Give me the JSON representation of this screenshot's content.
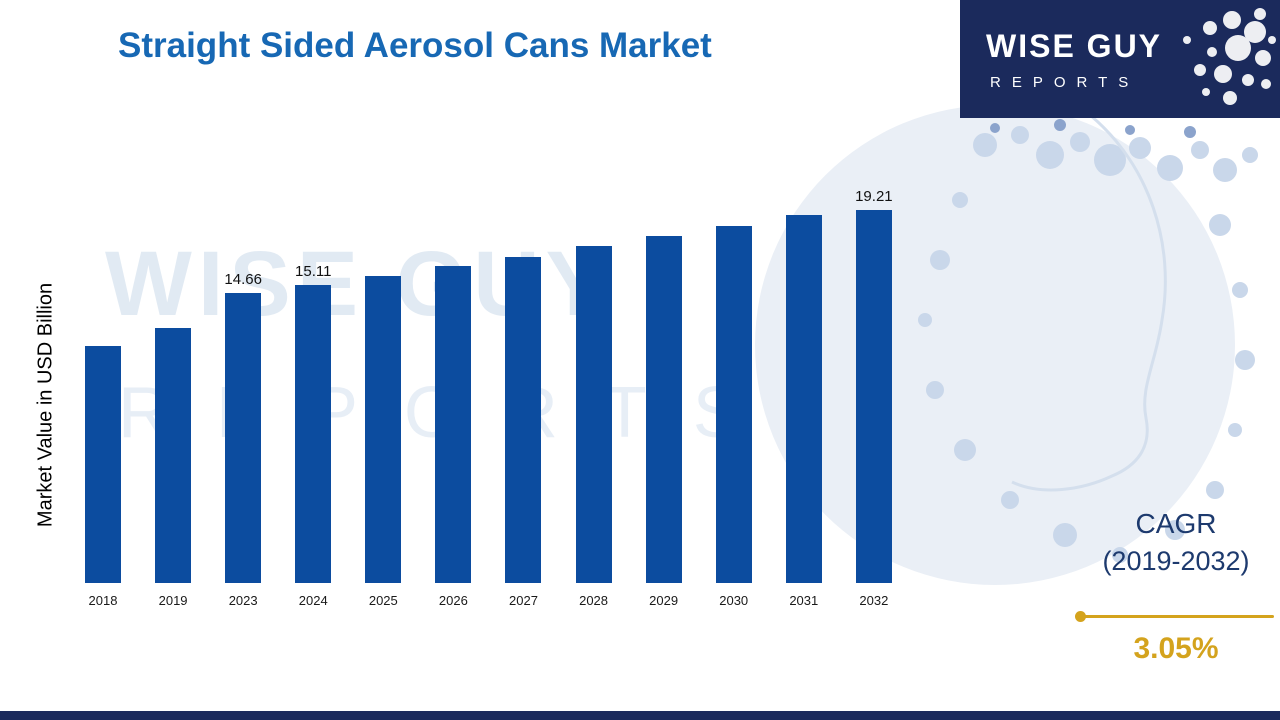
{
  "title": "Straight Sided Aerosol Cans Market",
  "logo": {
    "line1": "WISE GUY",
    "line2": "REPORTS"
  },
  "watermark": {
    "line1": "WISE GUY",
    "line2": "REPORTS"
  },
  "cagr": {
    "label": "CAGR",
    "range": "(2019-2032)",
    "value": "3.05%"
  },
  "colors": {
    "title_blue": "#1768b4",
    "bar_blue": "#0c4c9f",
    "logo_navy": "#1b2a5c",
    "accent_gold": "#d4a31d",
    "cagr_text": "#1d3a6e"
  },
  "chart_data": {
    "type": "bar",
    "title": "Straight Sided Aerosol Cans Market",
    "xlabel": "",
    "ylabel": "Market Value in USD Billion",
    "unit": "USD Billion",
    "categories": [
      "2018",
      "2019",
      "2023",
      "2024",
      "2025",
      "2026",
      "2027",
      "2028",
      "2029",
      "2030",
      "2031",
      "2032"
    ],
    "values": [
      12.0,
      12.9,
      14.66,
      15.11,
      15.57,
      16.04,
      16.53,
      17.04,
      17.56,
      18.09,
      18.65,
      19.21
    ],
    "data_labels": [
      "",
      "",
      "14.66",
      "15.11",
      "",
      "",
      "",
      "",
      "",
      "",
      "",
      "19.21"
    ],
    "bar_color": "#0c4c9f",
    "ylim": [
      0,
      20
    ],
    "grid": false,
    "legend": false
  }
}
